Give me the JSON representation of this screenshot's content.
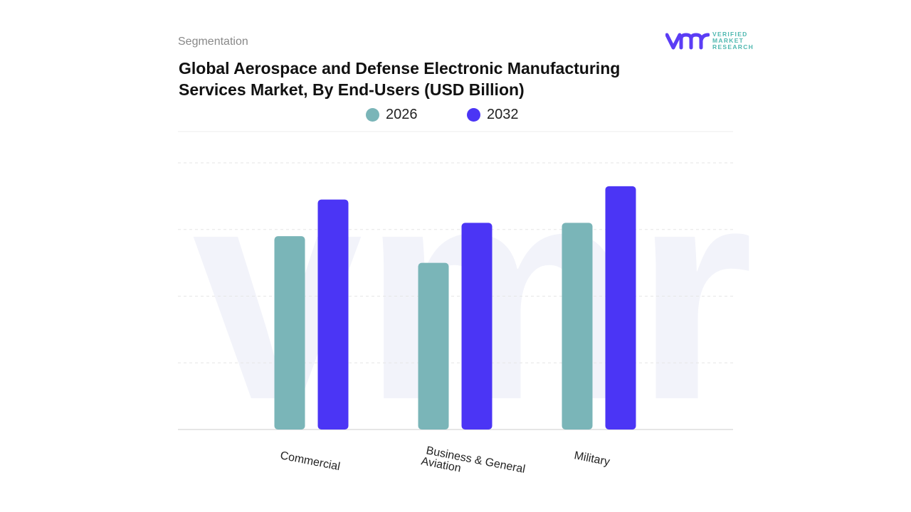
{
  "header": {
    "section": "Segmentation",
    "title": "Global Aerospace and Defense Electronic Manufacturing Services Market, By End-Users (USD Billion)"
  },
  "logo": {
    "text": [
      "VERIFIED",
      "MARKET",
      "RESEARCH"
    ],
    "mark": "vmr"
  },
  "chart_data": {
    "type": "bar",
    "title": "Global Aerospace and Defense Electronic Manufacturing Services Market, By End-Users (USD Billion)",
    "categories": [
      "Commercial",
      "Business & General Aviation",
      "Military"
    ],
    "series": [
      {
        "name": "2026",
        "color": "#7ab5b8",
        "values": [
          2.9,
          2.5,
          3.1
        ]
      },
      {
        "name": "2032",
        "color": "#4b35f5",
        "values": [
          3.45,
          3.1,
          3.65
        ]
      }
    ],
    "ylim": [
      0,
      4
    ],
    "grid": true,
    "legend": "top"
  }
}
